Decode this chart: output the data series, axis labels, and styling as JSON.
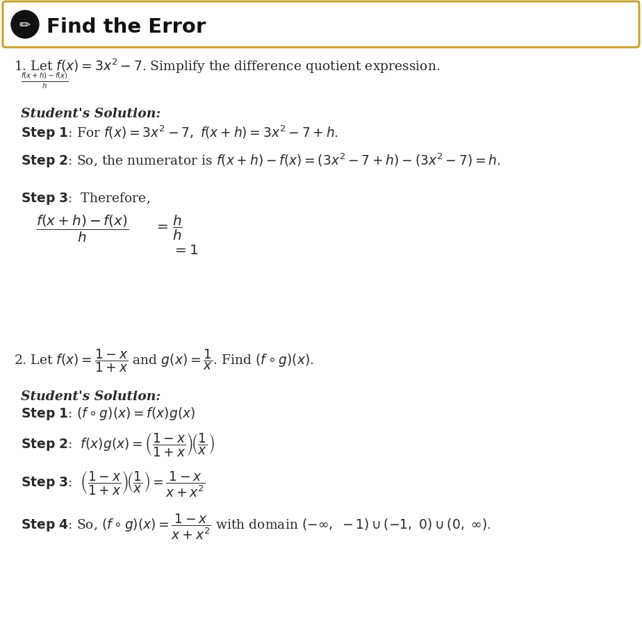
{
  "title": "Find the Error",
  "bg_color": "#ffffff",
  "header_bg": "#ffffff",
  "header_border": "#c8a232",
  "title_color": "#1a1a1a",
  "text_color": "#2a2a2a",
  "fig_width": 9.24,
  "fig_height": 9.14,
  "dpi": 100
}
